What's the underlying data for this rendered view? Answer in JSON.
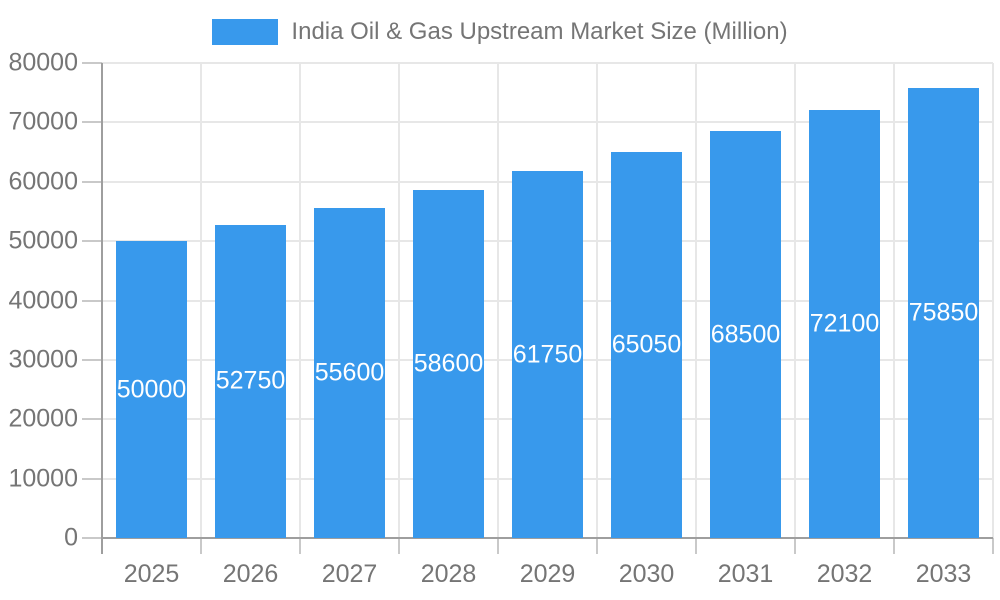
{
  "legend": {
    "label": "India Oil & Gas Upstream Market Size (Million)"
  },
  "colors": {
    "bar": "#3899ec",
    "bar_label": "#ffffff",
    "axis_label": "#757575",
    "legend_label": "#757575",
    "grid": "#e7e7e7",
    "axis_line": "#9e9e9e",
    "tick": "#c9c9c9",
    "background": "#ffffff"
  },
  "chart_data": {
    "type": "bar",
    "title": "India Oil & Gas Upstream Market Size (Million)",
    "series_name": "India Oil & Gas Upstream Market Size (Million)",
    "categories": [
      "2025",
      "2026",
      "2027",
      "2028",
      "2029",
      "2030",
      "2031",
      "2032",
      "2033"
    ],
    "values": [
      50000,
      52750,
      55600,
      58600,
      61750,
      65050,
      68500,
      72100,
      75850
    ],
    "xlabel": "",
    "ylabel": "",
    "ylim": [
      0,
      80000
    ],
    "ytick_step": 10000,
    "ytick_labels": [
      "0",
      "10000",
      "20000",
      "30000",
      "40000",
      "50000",
      "60000",
      "70000",
      "80000"
    ],
    "grid": true,
    "legend_position": "top",
    "value_labels": "centered-white"
  }
}
